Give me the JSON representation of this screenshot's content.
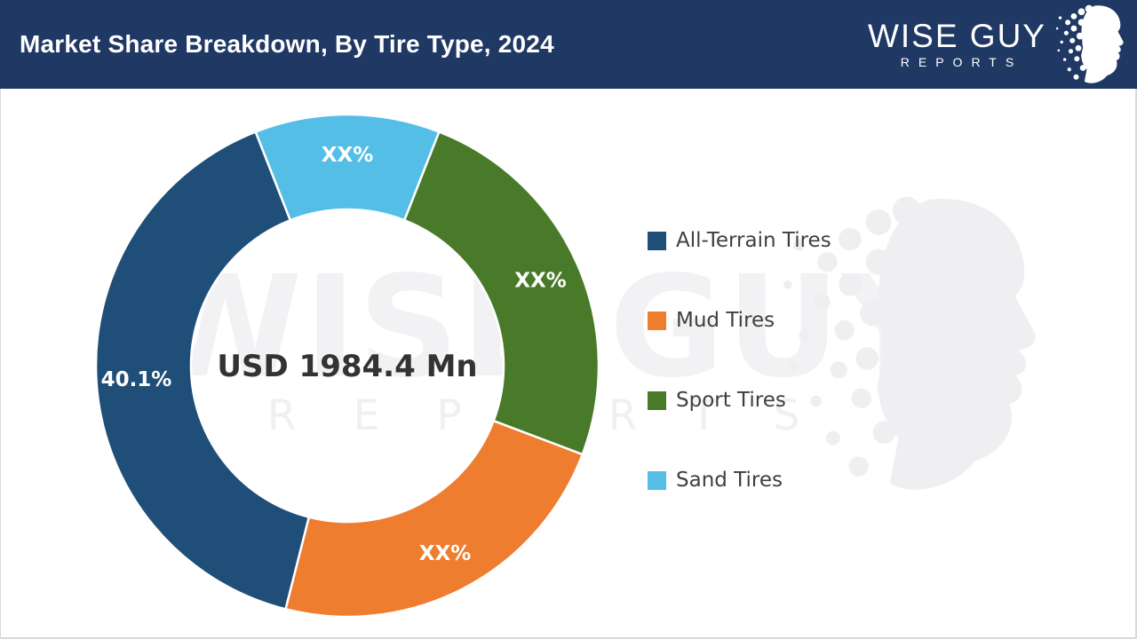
{
  "header": {
    "title": "Market Share Breakdown, By Tire Type, 2024",
    "logo": {
      "name": "WISE GUY",
      "sub": "REPORTS"
    }
  },
  "watermark": {
    "line1": "WISE GUY",
    "line2": "REPORTS"
  },
  "chart_data": {
    "type": "pie",
    "subtype": "donut",
    "title": "Market Share Breakdown, By Tire Type, 2024",
    "center_text": "USD 1984.4 Mn",
    "unit": "percent market share",
    "legend_position": "right",
    "note": "Only the All-Terrain share is revealed; other slice labels are masked as XX%",
    "slices": [
      {
        "label": "All-Terrain Tires",
        "value": 40.1,
        "display": "40.1%",
        "color": "#1F4F78"
      },
      {
        "label": "Mud Tires",
        "value": 23.2,
        "display": "XX%",
        "color": "#EE7D30"
      },
      {
        "label": "Sport Tires",
        "value": 24.8,
        "display": "XX%",
        "color": "#497A29"
      },
      {
        "label": "Sand Tires",
        "value": 11.9,
        "display": "XX%",
        "color": "#55BEE6"
      }
    ]
  },
  "colors": {
    "header_bg": "#203864",
    "border": "#d9d9d9",
    "center_text": "#333333",
    "legend_text": "#3f3f3f",
    "watermark": "#f1f1f3"
  }
}
